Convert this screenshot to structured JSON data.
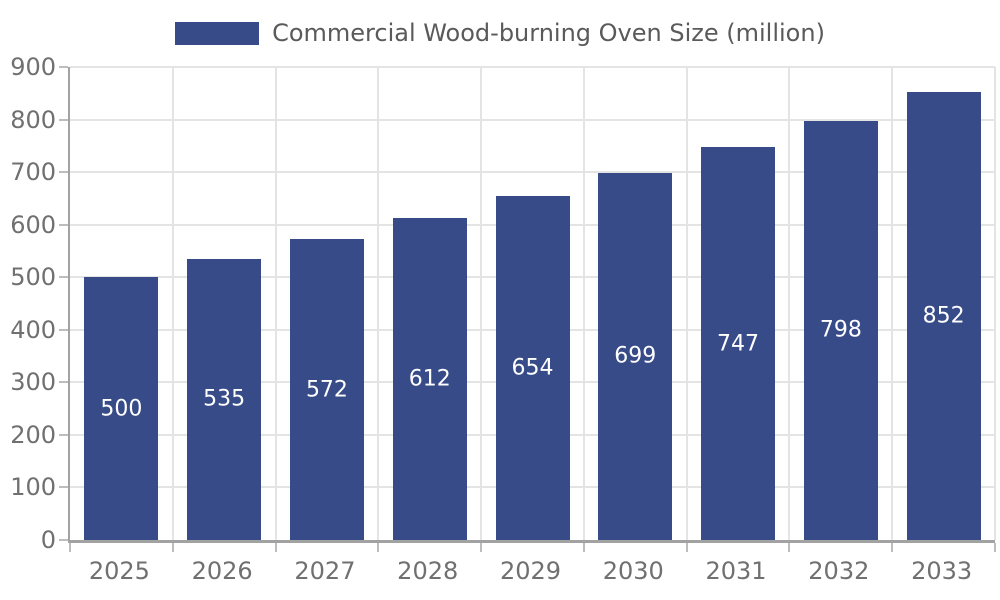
{
  "chart_data": {
    "type": "bar",
    "title": "Commercial Wood-burning Oven Size (million)",
    "categories": [
      "2025",
      "2026",
      "2027",
      "2028",
      "2029",
      "2030",
      "2031",
      "2032",
      "2033"
    ],
    "values": [
      500,
      535,
      572,
      612,
      654,
      699,
      747,
      798,
      852
    ],
    "ylim": [
      0,
      900
    ],
    "yticks": [
      0,
      100,
      200,
      300,
      400,
      500,
      600,
      700,
      800,
      900
    ],
    "xlabel": "",
    "ylabel": "",
    "grid": true,
    "bar_labels_inside": true,
    "legend": {
      "position": "top-center",
      "label": "Commercial Wood-burning Oven Size (million)"
    },
    "colors": {
      "bar": "#374B88",
      "bar_label": "#FFFFFF",
      "tick_text": "#707070",
      "legend_text": "#5A5A5A",
      "gridline": "#E4E4E4",
      "axis_line": "#A2A2A2",
      "tick_mark": "#BDBDBD",
      "background": "#FFFFFF"
    }
  }
}
